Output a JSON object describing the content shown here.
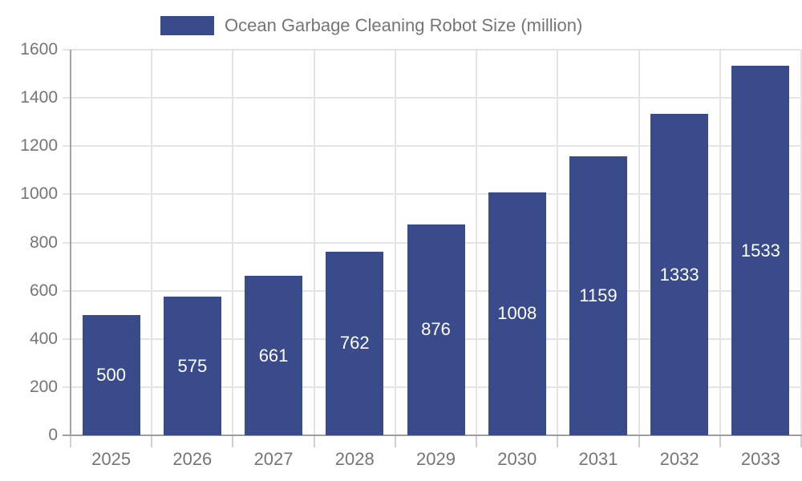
{
  "legend": {
    "label": "Ocean Garbage Cleaning Robot Size (million)"
  },
  "colors": {
    "bar": "#394B8A",
    "value_label": "#ffffff",
    "axis_text": "#757575",
    "gridline": "#e4e4e4"
  },
  "chart_data": {
    "type": "bar",
    "title": "Ocean Garbage Cleaning Robot Size (million)",
    "series_name": "Ocean Garbage Cleaning Robot Size (million)",
    "categories": [
      "2025",
      "2026",
      "2027",
      "2028",
      "2029",
      "2030",
      "2031",
      "2032",
      "2033"
    ],
    "values": [
      500,
      575,
      661,
      762,
      876,
      1008,
      1159,
      1333,
      1533
    ],
    "xlabel": "",
    "ylabel": "",
    "ylim": [
      0,
      1600
    ],
    "yticks": [
      0,
      200,
      400,
      600,
      800,
      1000,
      1200,
      1400,
      1600
    ],
    "grid": true,
    "legend_position": "top",
    "value_labels": "inside-center"
  }
}
